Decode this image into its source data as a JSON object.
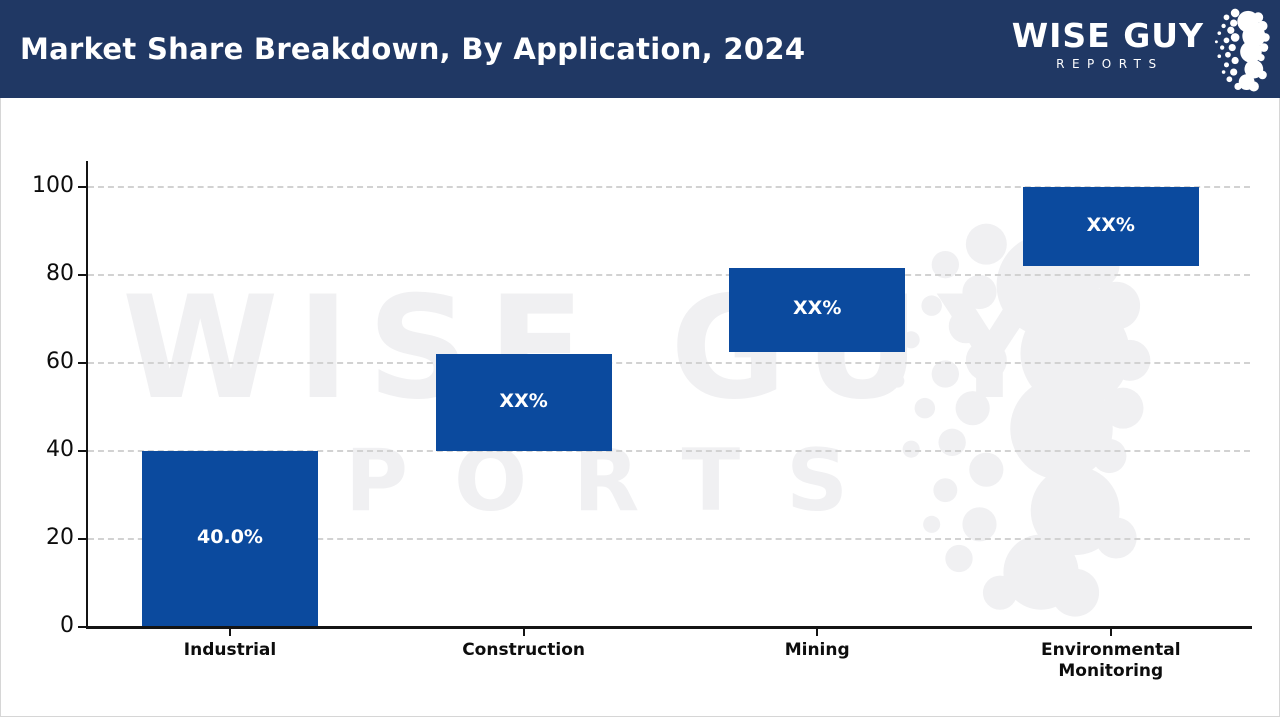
{
  "header": {
    "title": "Market Share Breakdown, By Application, 2024",
    "bg_color": "#203864",
    "logo": {
      "name_line": "WISE GUY",
      "sub_line": "REPORTS"
    }
  },
  "watermark": {
    "line1": "WISE GUY",
    "line2": "PORTS"
  },
  "chart_data": {
    "type": "bar",
    "subtype": "floating-waterfall",
    "title": "Market Share Breakdown, By Application, 2024",
    "categories": [
      "Industrial",
      "Construction",
      "Mining",
      "Environmental Monitoring"
    ],
    "bars": [
      {
        "category": "Industrial",
        "start": 0,
        "end": 40,
        "label": "40.0%"
      },
      {
        "category": "Construction",
        "start": 40,
        "end": 62,
        "label": "XX%"
      },
      {
        "category": "Mining",
        "start": 62.5,
        "end": 81.5,
        "label": "XX%"
      },
      {
        "category": "Environmental Monitoring",
        "start": 82,
        "end": 100,
        "label": "XX%"
      }
    ],
    "ylim": [
      0,
      100
    ],
    "yticks": [
      0,
      20,
      40,
      60,
      80,
      100
    ],
    "grid": "horizontal-dashed",
    "legend": "none",
    "xlabel": "",
    "ylabel": "",
    "bar_color": "#0b4a9e",
    "bar_label_color": "#ffffff",
    "grid_color": "#d2d2d2",
    "axis_color": "#141414"
  }
}
